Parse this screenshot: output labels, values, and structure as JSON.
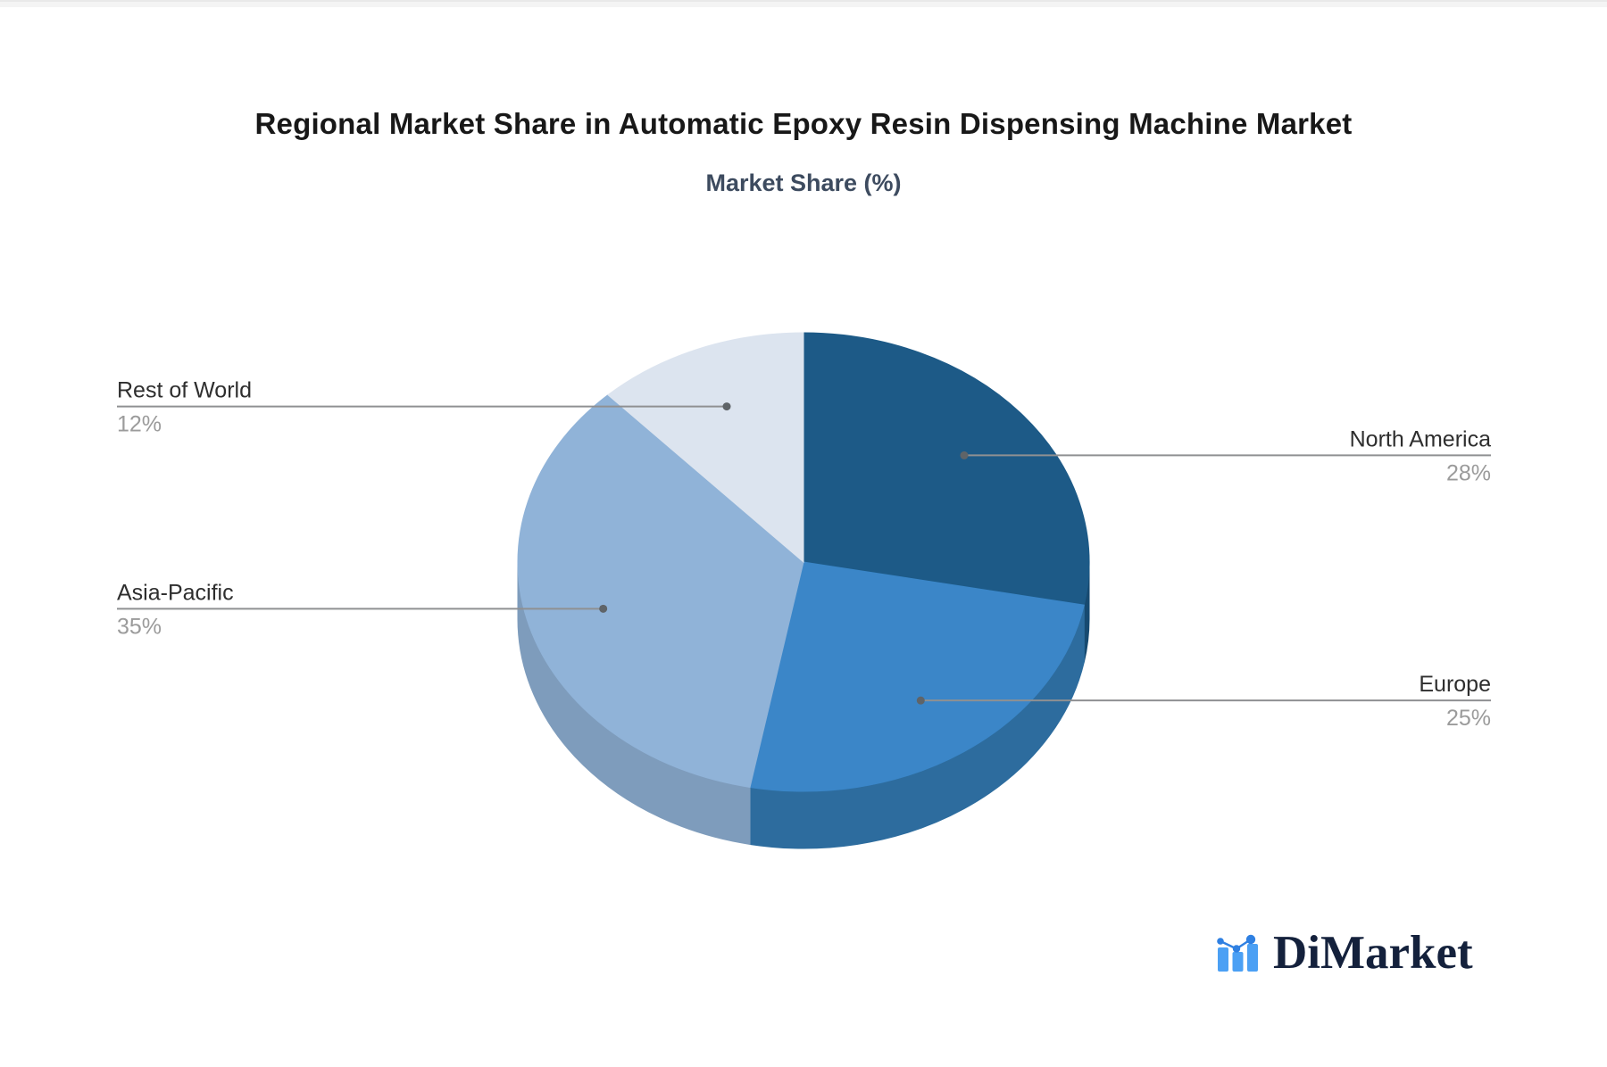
{
  "header": {
    "title": "Regional Market Share in Automatic Epoxy Resin Dispensing Machine Market",
    "subtitle": "Market Share (%)"
  },
  "chart_data": {
    "type": "pie",
    "title": "Regional Market Share in Automatic Epoxy Resin Dispensing Machine Market",
    "subtitle": "Market Share (%)",
    "unit": "%",
    "style": "3d-pie",
    "start_angle_deg": 0,
    "direction": "clockwise",
    "legend_position": "none",
    "labels_style": "callout-lines",
    "slices": [
      {
        "label": "North America",
        "value": 28,
        "display": "28%",
        "color": "#1d5a87",
        "side_color": "#174a70",
        "label_side": "right"
      },
      {
        "label": "Europe",
        "value": 25,
        "display": "25%",
        "color": "#3b86c8",
        "side_color": "#2d6c9e",
        "label_side": "right"
      },
      {
        "label": "Asia-Pacific",
        "value": 35,
        "display": "35%",
        "color": "#90b3d8",
        "side_color": "#7e9cbc",
        "label_side": "left"
      },
      {
        "label": "Rest of World",
        "value": 12,
        "display": "12%",
        "color": "#dce4ef",
        "side_color": "#c3cfdf",
        "label_side": "left"
      }
    ]
  },
  "branding": {
    "logo_text": "DiMarket",
    "logo_icon": "bar-line-chart-icon",
    "icon_bar_color": "#4ba0f4",
    "icon_dot_color": "#2f80e2",
    "text_color": "#14213c"
  },
  "colors": {
    "background": "#ffffff",
    "title": "#181818",
    "subtitle": "#3d4b5f",
    "label_text": "#2e2e2e",
    "value_text": "#9b9b9b",
    "leader_line": "#8f9092",
    "leader_dot": "#5f6468"
  }
}
